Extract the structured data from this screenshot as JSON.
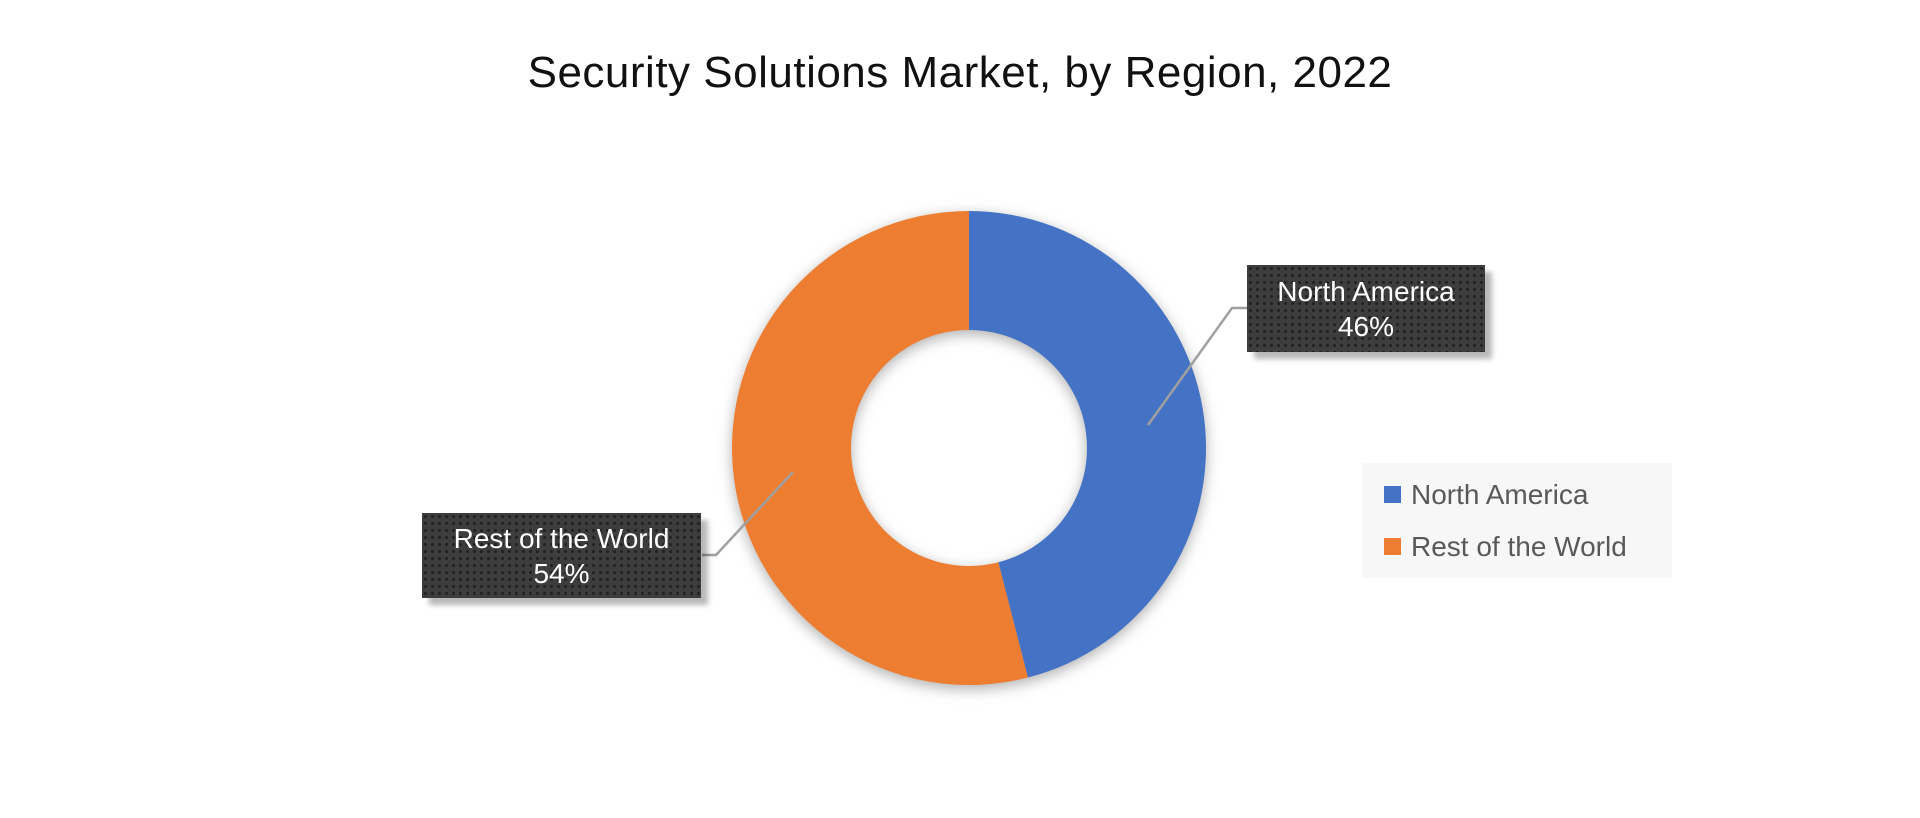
{
  "chart_data": {
    "type": "pie",
    "subtype": "donut",
    "title": "Security Solutions Market, by Region, 2022",
    "categories": [
      "North America",
      "Rest of the World"
    ],
    "values": [
      46,
      54
    ],
    "unit": "%",
    "colors": [
      "#4472C4",
      "#ED7D31"
    ],
    "start_angle_deg": 0,
    "direction": "clockwise",
    "hole_ratio": 0.5,
    "legend_position": "right",
    "grid": false,
    "data_labels": [
      {
        "category": "North America",
        "lines": [
          "North America",
          "46%"
        ]
      },
      {
        "category": "Rest of the World",
        "lines": [
          "Rest of the World",
          "54%"
        ]
      }
    ]
  },
  "legend": {
    "items": [
      {
        "label": "North America",
        "color": "#4472C4"
      },
      {
        "label": "Rest of the World",
        "color": "#ED7D31"
      }
    ]
  },
  "style_colors": {
    "callout_background": "#3d3d3d",
    "callout_text": "#ffffff",
    "leader_line": "#a0a0a0",
    "legend_background": "#f7f7f7",
    "legend_text": "#595959",
    "title_text": "#111111"
  }
}
